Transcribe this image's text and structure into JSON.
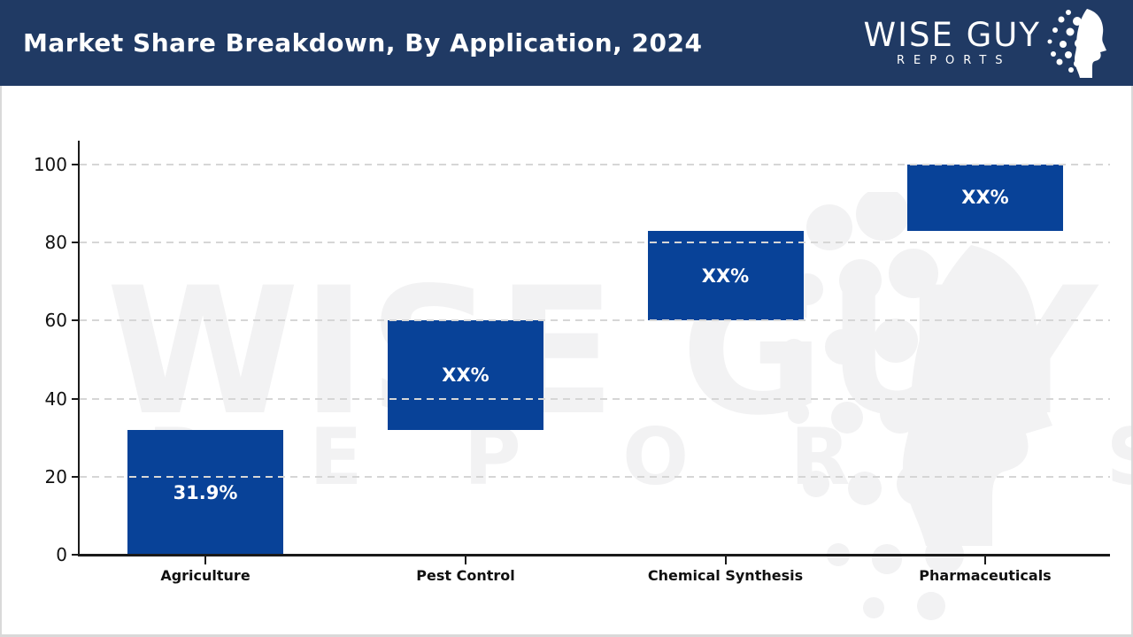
{
  "header": {
    "title": "Market Share Breakdown, By Application, 2024",
    "logo": {
      "line1": "WISE GUY",
      "line2": "REPORTS",
      "icon": "dotted-head-profile"
    }
  },
  "watermark": {
    "line1": "WISE GUY",
    "line2": "R E P O R T S"
  },
  "colors": {
    "header_bg": "#203a64",
    "bar_blue": "#084298",
    "bar_label": "#ffffff",
    "gridline": "#d6d6d6",
    "axis": "#1a1a1a",
    "watermark": "#f2f2f3"
  },
  "chart_data": {
    "type": "bar",
    "subtype": "waterfall",
    "title": "Market Share Breakdown, By Application, 2024",
    "categories": [
      "Agriculture",
      "Pest Control",
      "Chemical Synthesis",
      "Pharmaceuticals"
    ],
    "bars": [
      {
        "category": "Agriculture",
        "label": "31.9%",
        "start": 0,
        "end": 31.9
      },
      {
        "category": "Pest Control",
        "label": "XX%",
        "start": 31.9,
        "end": 60
      },
      {
        "category": "Chemical Synthesis",
        "label": "XX%",
        "start": 60,
        "end": 83
      },
      {
        "category": "Pharmaceuticals",
        "label": "XX%",
        "start": 83,
        "end": 100
      }
    ],
    "y_ticks": [
      0,
      20,
      40,
      60,
      80,
      100
    ],
    "ylim": [
      0,
      107
    ],
    "xlabel": "",
    "ylabel": "",
    "grid": "horizontal-dashed",
    "legend": "none"
  }
}
